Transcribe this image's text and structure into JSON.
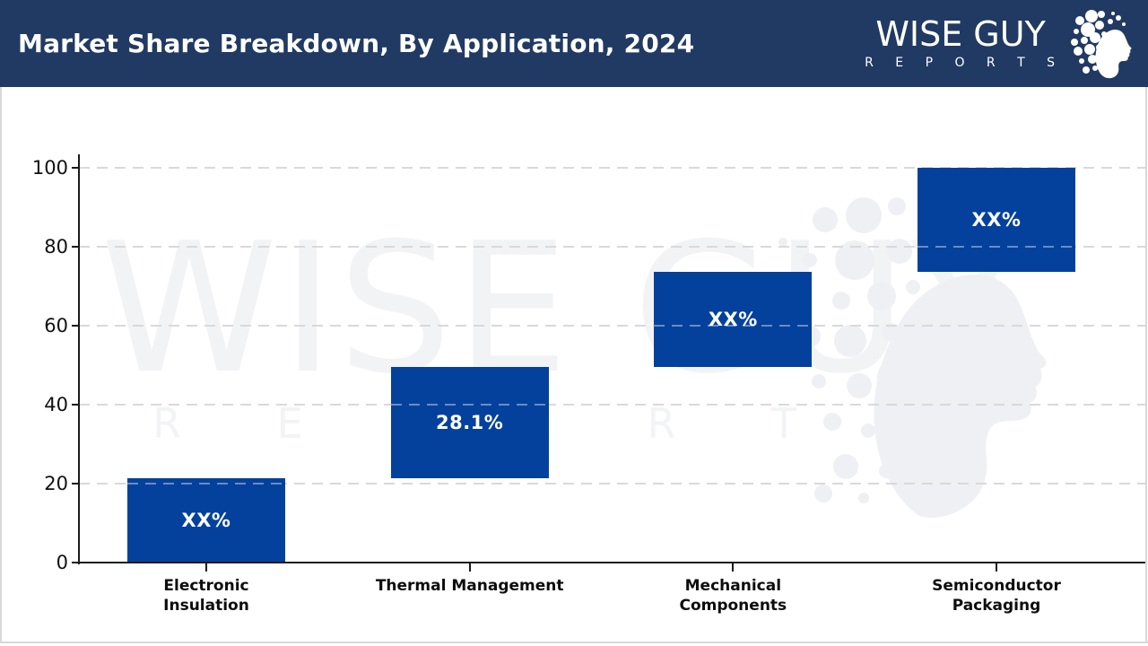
{
  "header": {
    "title": "Market Share Breakdown, By Application, 2024",
    "logo": {
      "name": "WISE GUY",
      "subtitle": "R E P O R T S"
    }
  },
  "watermark": {
    "big_text": "WISE GUY",
    "sub_text": "R E P O R T S"
  },
  "chart_data": {
    "type": "bar",
    "subtype": "waterfall-floating-bars",
    "title": "Market Share Breakdown, By Application, 2024",
    "categories": [
      "Electronic\nInsulation",
      "Thermal Management",
      "Mechanical\nComponents",
      "Semiconductor\nPackaging"
    ],
    "segments": [
      {
        "category": "Electronic Insulation",
        "start": 0,
        "end": 21.4,
        "label": "XX%"
      },
      {
        "category": "Thermal Management",
        "start": 21.4,
        "end": 49.5,
        "label": "28.1%"
      },
      {
        "category": "Mechanical Components",
        "start": 49.5,
        "end": 73.7,
        "label": "XX%"
      },
      {
        "category": "Semiconductor Packaging",
        "start": 73.7,
        "end": 100,
        "label": "XX%"
      }
    ],
    "ylim": [
      0,
      100
    ],
    "yticks": [
      0,
      20,
      40,
      60,
      80,
      100
    ],
    "xlabel": "",
    "ylabel": "",
    "grid": "horizontal-dashed",
    "legend": "none",
    "colors": {
      "bar": "#04419c",
      "bar_label": "#ffffff",
      "header_background": "#213a63",
      "gridline": "#d9d9d9",
      "axis": "#1a1a1a",
      "watermark": "#f2f3f5"
    }
  }
}
